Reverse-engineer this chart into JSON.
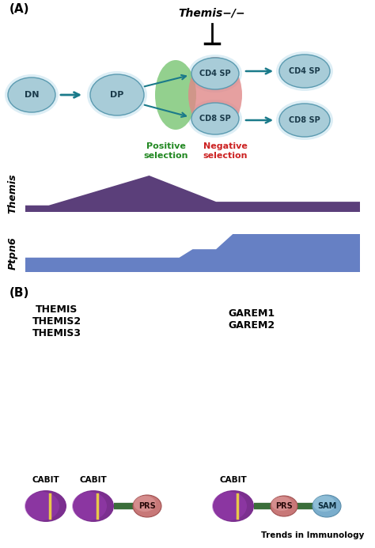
{
  "bg_color": "#ffffff",
  "panel_A_label": "(A)",
  "panel_B_label": "(B)",
  "themis_ko_label": "Themis−/−",
  "dn_label": "DN",
  "dp_label": "DP",
  "cd4sp_label1": "CD4 SP",
  "cd8sp_label1": "CD8 SP",
  "cd4sp_label2": "CD4 SP",
  "cd8sp_label2": "CD8 SP",
  "pos_sel_label": "Positive\nselection",
  "neg_sel_label": "Negative\nselection",
  "pos_sel_color": "#80c87a",
  "neg_sel_color": "#e08888",
  "cell_fill": "#a8ccd8",
  "cell_edge": "#5a9ab0",
  "cell_outer": "#ddeef5",
  "arrow_color": "#1a7a8a",
  "themis_plot_color": "#5b3f7a",
  "ptpn6_plot_color": "#6680c4",
  "themis_label": "Themis",
  "ptpn6_label": "Ptpn6",
  "cabit_color": "#7b2f8f",
  "cabit_stripe": "#e8c84a",
  "prs_color": "#c87878",
  "sam_color": "#7aadcc",
  "linker_color": "#3a6e3a",
  "themis_group_labels": [
    "THEMIS",
    "THEMIS2",
    "THEMIS3"
  ],
  "garem_group_labels": [
    "GAREM1",
    "GAREM2"
  ],
  "cabit_label": "CABIT",
  "prs_label": "PRS",
  "sam_label": "SAM",
  "trends_label": "Trends in Immunology"
}
